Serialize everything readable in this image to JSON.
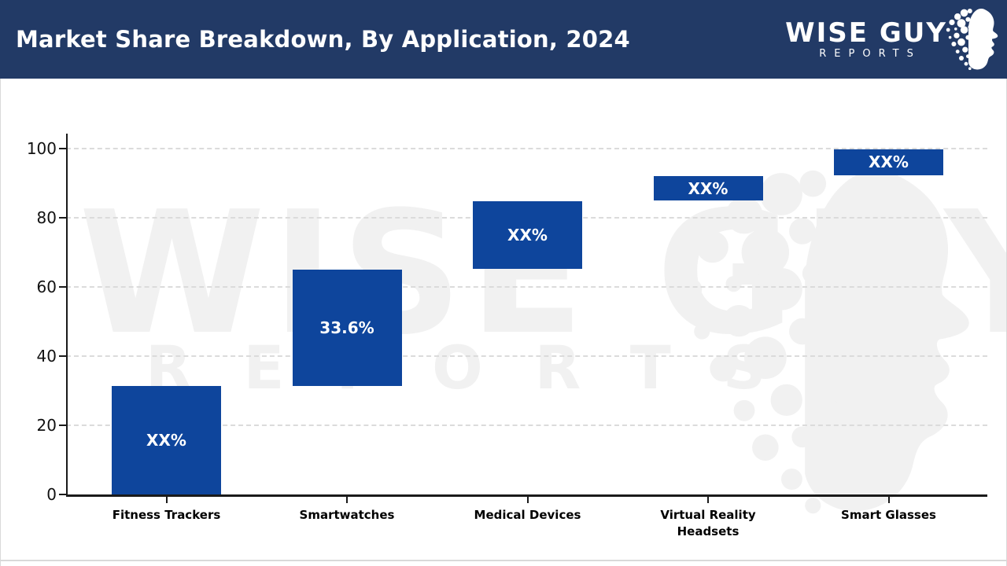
{
  "header": {
    "title": "Market Share Breakdown, By Application, 2024",
    "logo": {
      "line1": "WISE GUY",
      "line2": "REPORTS"
    }
  },
  "watermark": {
    "line1": "WISE GUY",
    "line2": "REPORTS"
  },
  "chart_data": {
    "type": "bar",
    "variant": "waterfall-stacked-market-share",
    "title": "Market Share Breakdown, By Application, 2024",
    "categories": [
      "Fitness Trackers",
      "Smartwatches",
      "Medical Devices",
      "Virtual Reality\nHeadsets",
      "Smart Glasses"
    ],
    "segments": [
      {
        "category": "Fitness Trackers",
        "start": 0,
        "end": 31.4,
        "label": "XX%"
      },
      {
        "category": "Smartwatches",
        "start": 31.4,
        "end": 65.0,
        "label": "33.6%"
      },
      {
        "category": "Medical Devices",
        "start": 65.2,
        "end": 84.8,
        "label": "XX%"
      },
      {
        "category": "Virtual Reality Headsets",
        "start": 85.0,
        "end": 92.0,
        "label": "XX%"
      },
      {
        "category": "Smart Glasses",
        "start": 92.3,
        "end": 99.8,
        "label": "XX%"
      }
    ],
    "values": [
      31.4,
      33.6,
      19.6,
      7.0,
      7.5
    ],
    "yticks": [
      0,
      20,
      40,
      60,
      80,
      100
    ],
    "ylim": [
      0,
      104
    ],
    "xlabel": "",
    "ylabel": "",
    "legend": "none",
    "grid": "horizontal-dashed",
    "bar_color": "#0E459C",
    "bar_label_color": "#FFFFFF"
  },
  "colors": {
    "header_bg": "#223A66",
    "header_text": "#FFFFFF",
    "page_bg": "#FFFFFF",
    "axis": "#1A1A1A",
    "tick_label": "#111111",
    "gridline": "#DBDBDB",
    "watermark": "#F1F1F1",
    "frame_border": "#D9D9D9",
    "bar": "#0E459C",
    "bar_label": "#FFFFFF"
  }
}
